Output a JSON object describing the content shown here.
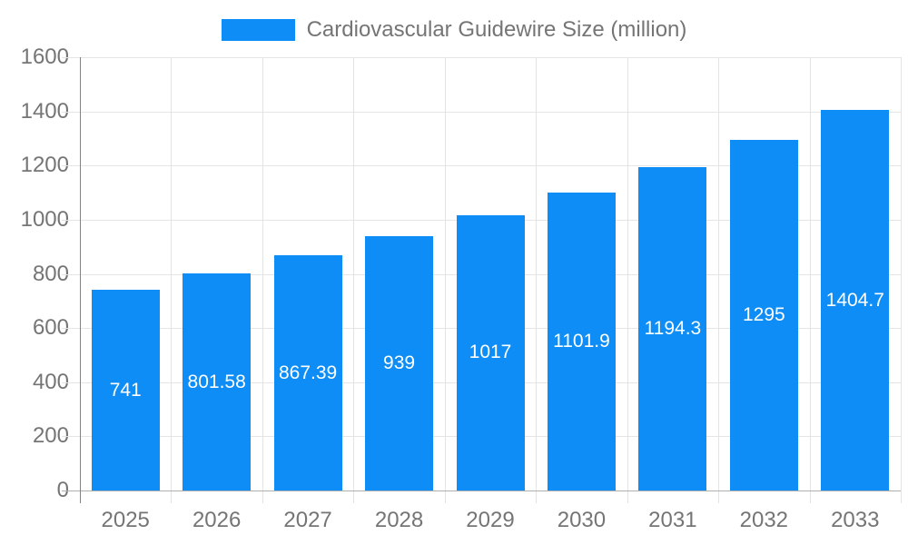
{
  "colors": {
    "bar": "#0d8df5",
    "axis_text": "#757575",
    "bar_label_text": "#ffffff",
    "gridline": "#e5e5e5",
    "y_axis_line": "#828282",
    "baseline": "#b0b0b0",
    "background": "#ffffff"
  },
  "legend": {
    "swatch": "series-color-swatch"
  },
  "chart_data": {
    "type": "bar",
    "title": "Cardiovascular Guidewire Size (million)",
    "categories": [
      "2025",
      "2026",
      "2027",
      "2028",
      "2029",
      "2030",
      "2031",
      "2032",
      "2033"
    ],
    "values": [
      741,
      801.58,
      867.39,
      939,
      1017,
      1101.9,
      1194.3,
      1295,
      1404.7
    ],
    "bar_labels": [
      "741",
      "801.58",
      "867.39",
      "939",
      "1017",
      "1101.9",
      "1194.3",
      "1295",
      "1404.7"
    ],
    "xlabel": "",
    "ylabel": "",
    "ylim": [
      0,
      1600
    ],
    "yticks": [
      0,
      200,
      400,
      600,
      800,
      1000,
      1200,
      1400,
      1600
    ],
    "grid": true,
    "legend_position": "top",
    "series": [
      {
        "name": "Cardiovascular Guidewire Size (million)",
        "values": [
          741,
          801.58,
          867.39,
          939,
          1017,
          1101.9,
          1194.3,
          1295,
          1404.7
        ]
      }
    ]
  }
}
